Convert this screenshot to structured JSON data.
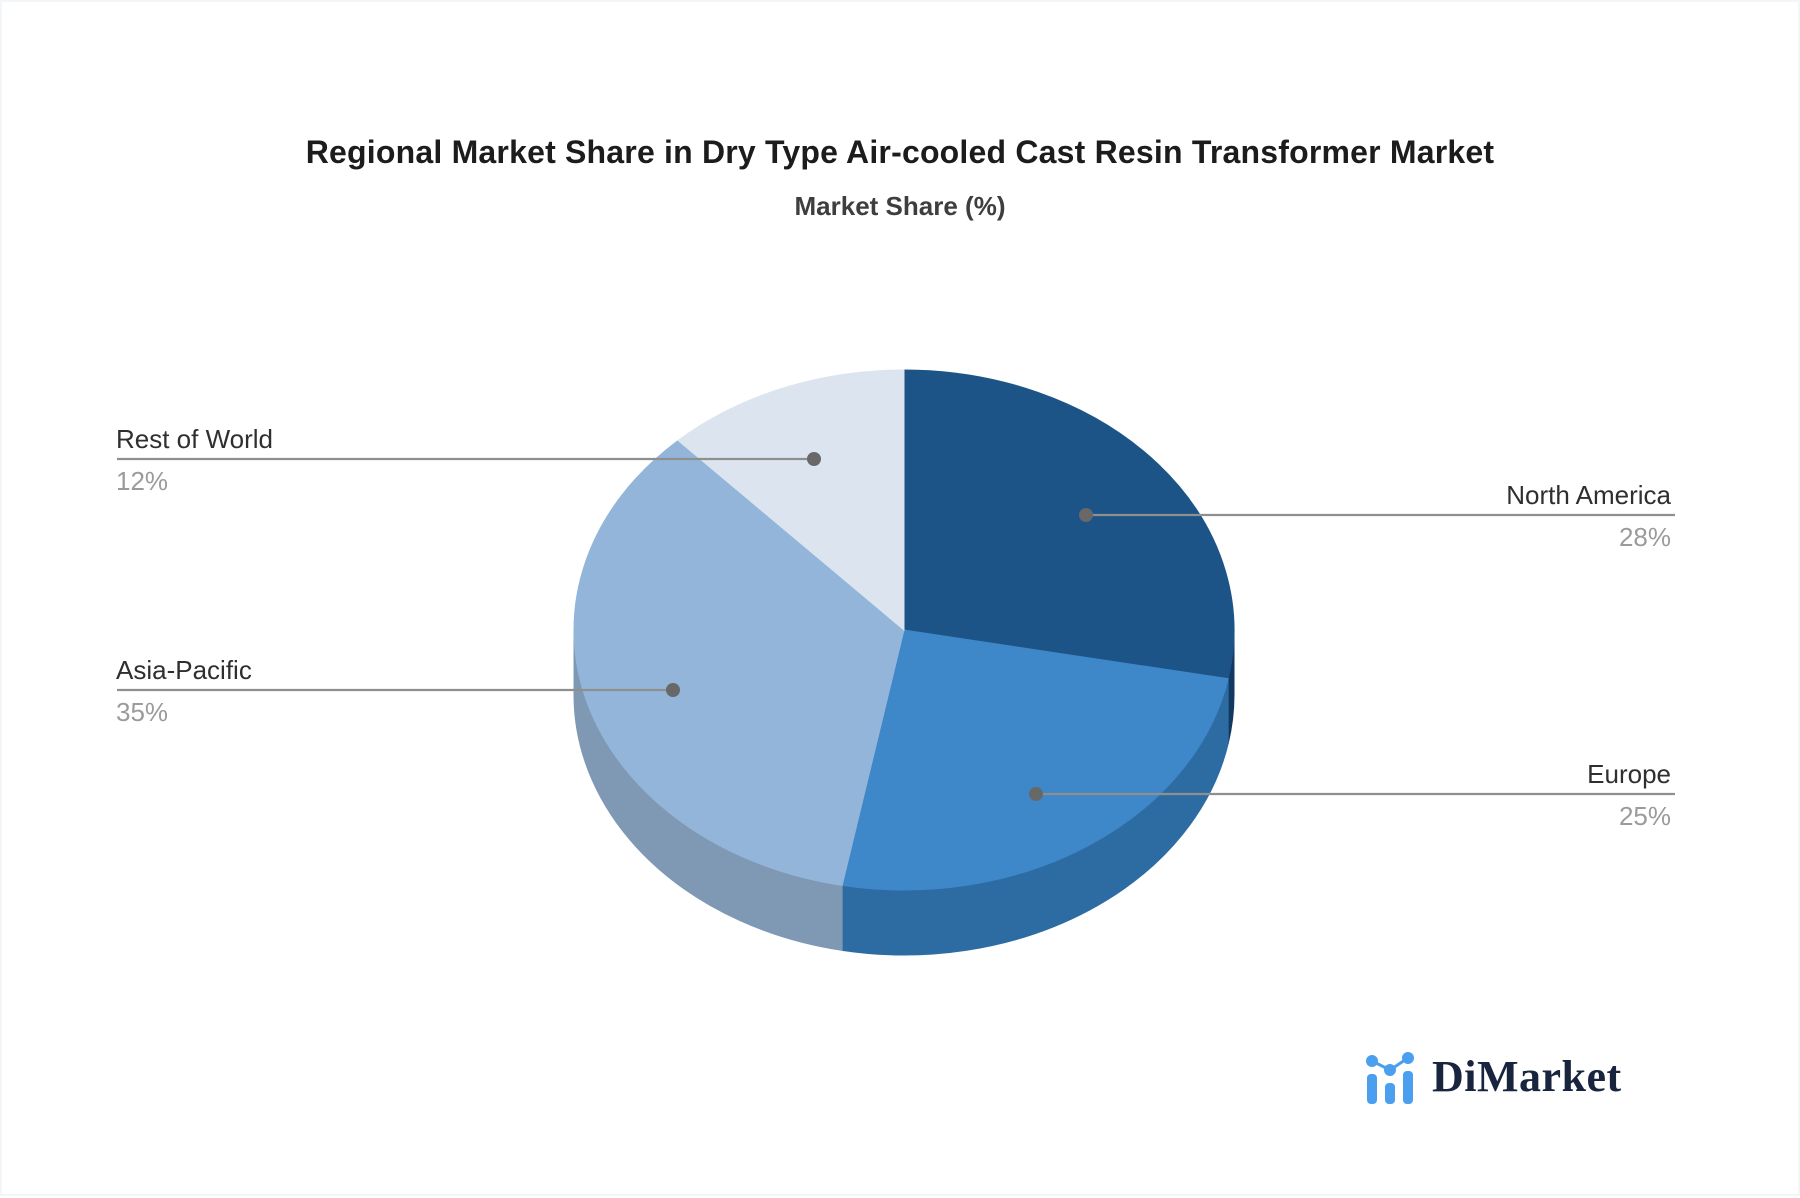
{
  "title": "Regional Market Share in Dry Type Air-cooled Cast Resin Transformer Market",
  "subtitle": "Market Share (%)",
  "logo": {
    "text": "DiMarket",
    "icon": "bar-chart-trend-icon"
  },
  "chart_data": {
    "type": "pie",
    "title": "Regional Market Share in Dry Type Air-cooled Cast Resin Transformer Market",
    "subtitle": "Market Share (%)",
    "unit": "%",
    "style": "3d-pie",
    "start_angle": "12-o-clock, clockwise",
    "legend_position": "callout-labels",
    "slices": [
      {
        "label": "North America",
        "value": 28,
        "pct_label": "28%",
        "color": "#1d5488",
        "side_color": "#12395f",
        "label_side": "right"
      },
      {
        "label": "Europe",
        "value": 25,
        "pct_label": "25%",
        "color": "#3e87c8",
        "side_color": "#2d6ca3",
        "label_side": "right"
      },
      {
        "label": "Asia-Pacific",
        "value": 35,
        "pct_label": "35%",
        "color": "#94b5da",
        "side_color": "#7f98b4",
        "label_side": "left"
      },
      {
        "label": "Rest of World",
        "value": 12,
        "pct_label": "12%",
        "color": "#dbe4ef",
        "side_color": "#b3c0d1",
        "label_side": "left"
      }
    ],
    "callout_color": "#8f8f8f",
    "callout_dot_color": "#686868"
  }
}
